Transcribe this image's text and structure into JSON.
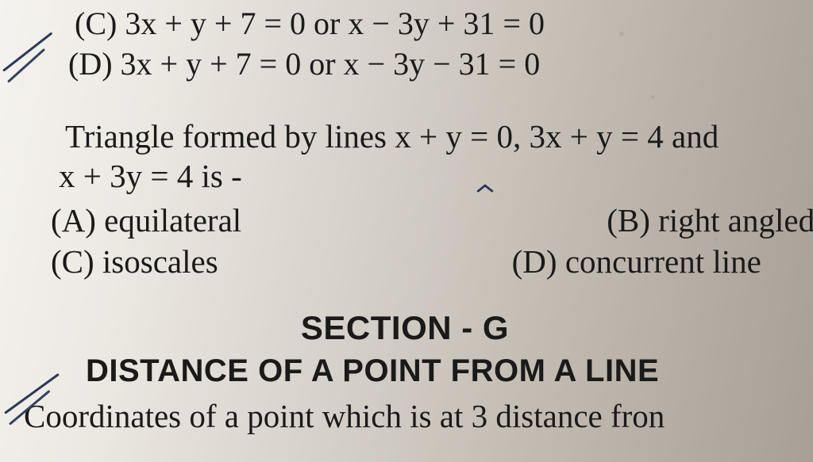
{
  "colors": {
    "text": "#1a1a1a",
    "pen": "#2a3a55",
    "bg_light": "#f5f3ef",
    "bg_dark": "#a89f96"
  },
  "typography": {
    "serif_family": "Georgia / Times New Roman",
    "sans_bold_family": "Arial Black",
    "body_fontsize_pt": 30,
    "title_fontsize_pt": 31
  },
  "top_options": {
    "C": "(C) 3x + y + 7 = 0 or x − 3y + 31 = 0",
    "D": "(D) 3x + y + 7 = 0 or x − 3y − 31 = 0"
  },
  "question": {
    "line1": "Triangle formed by lines x + y = 0, 3x + y = 4 and",
    "line2": "x + 3y = 4 is -"
  },
  "options": {
    "A": "(A) equilateral",
    "B": "(B) right angled",
    "C": "(C) isoscales",
    "D": "(D) concurrent line"
  },
  "section": {
    "label": "SECTION - G",
    "title": "DISTANCE OF A POINT FROM A LINE",
    "next_line": "Coordinates of a point which is at 3 distance fron"
  }
}
